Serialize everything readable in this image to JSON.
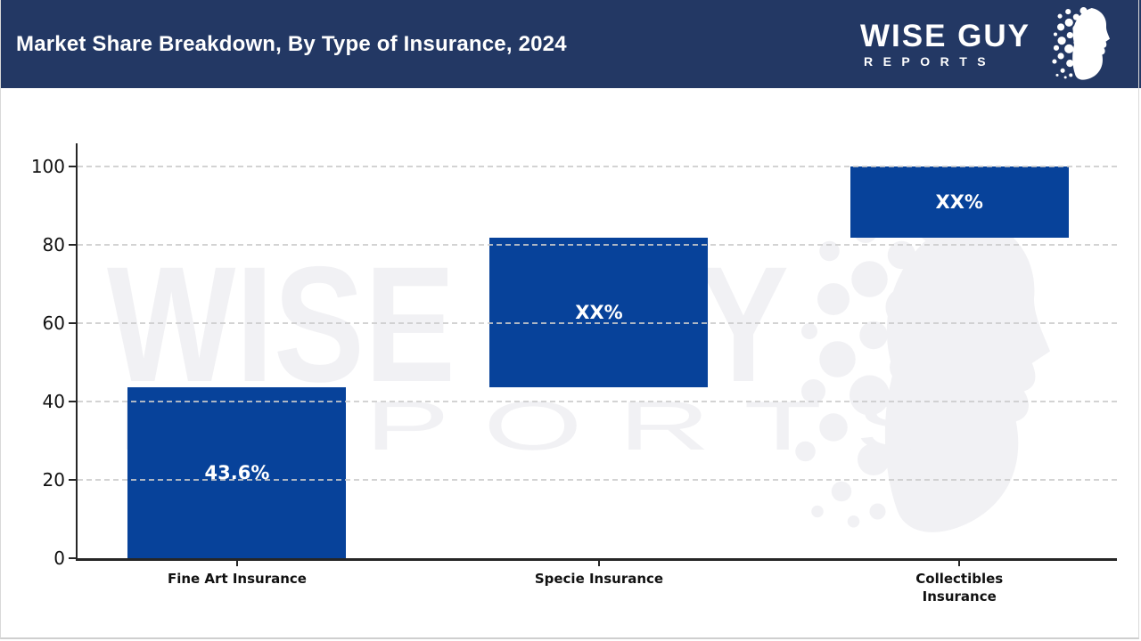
{
  "header": {
    "title": "Market Share Breakdown, By Type of Insurance, 2024",
    "logo": {
      "name": "WISE GUY",
      "subtitle": "REPORTS"
    }
  },
  "watermark": {
    "line1": "WISE GUY",
    "line2": "R E P O R T S"
  },
  "colors": {
    "header_background": "#233864",
    "bar": "#07429a",
    "bar_label": "#ffffff",
    "gridline": "#cbcbcb",
    "axis": "#262626",
    "watermark": "#f1f1f4",
    "title_text": "#ffffff",
    "tick_text": "#111111"
  },
  "chart_data": {
    "type": "bar",
    "variant": "floating-stacked-percent",
    "title": "Market Share Breakdown, By Type of Insurance, 2024",
    "categories": [
      "Fine Art Insurance",
      "Specie Insurance",
      "Collectibles Insurance"
    ],
    "series": [
      {
        "name": "Fine Art Insurance",
        "start": 0,
        "end": 43.6,
        "label": "43.6%"
      },
      {
        "name": "Specie Insurance",
        "start": 43.6,
        "end": 81.8,
        "label": "XX%"
      },
      {
        "name": "Collectibles Insurance",
        "start": 81.8,
        "end": 100,
        "label": "XX%"
      }
    ],
    "xlabel": "",
    "ylabel": "",
    "ylim": [
      0,
      100
    ],
    "yticks": [
      0,
      20,
      40,
      60,
      80,
      100
    ],
    "grid": "horizontal-dashed-over-bars",
    "legend": "none"
  }
}
